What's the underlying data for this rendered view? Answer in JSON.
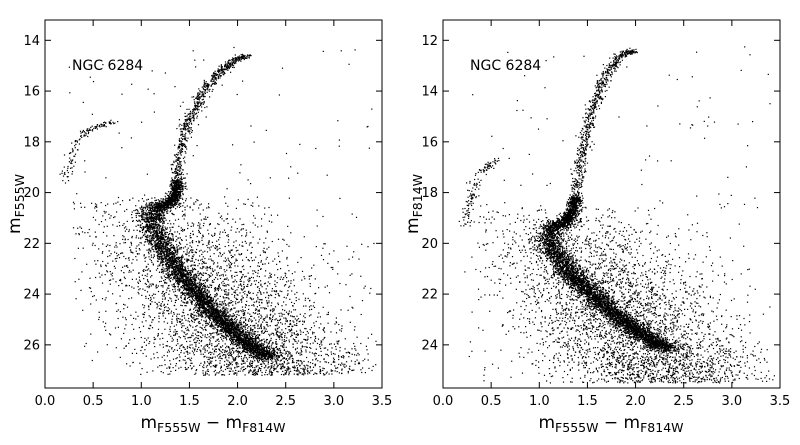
{
  "chart_data": [
    {
      "type": "scatter",
      "annotation": "NGC 6284",
      "xlabel_main": "m",
      "xlabel_sub1": "F555W",
      "xlabel_minus": " − m",
      "xlabel_sub2": "F814W",
      "ylabel_main": "m",
      "ylabel_sub": "F555W",
      "xlim": [
        0.0,
        3.5
      ],
      "ylim": [
        27.7,
        13.2
      ],
      "y_inverted": true,
      "xticks": [
        "0.0",
        "0.5",
        "1.0",
        "1.5",
        "2.0",
        "2.5",
        "3.0",
        "3.5"
      ],
      "yticks": [
        "14",
        "16",
        "18",
        "20",
        "22",
        "24",
        "26"
      ],
      "point_color": "#000000",
      "features": {
        "main_sequence": {
          "points": [
            [
              2.35,
              26.5
            ],
            [
              2.15,
              26.1
            ],
            [
              1.95,
              25.4
            ],
            [
              1.75,
              24.7
            ],
            [
              1.55,
              23.9
            ],
            [
              1.38,
              23.1
            ],
            [
              1.25,
              22.3
            ],
            [
              1.15,
              21.6
            ],
            [
              1.1,
              21.0
            ],
            [
              1.15,
              20.6
            ],
            [
              1.3,
              20.4
            ]
          ],
          "width": 0.07,
          "count": 4200
        },
        "subgiant_branch": {
          "points": [
            [
              1.3,
              20.4
            ],
            [
              1.36,
              20.1
            ],
            [
              1.38,
              19.5
            ]
          ],
          "width": 0.035,
          "count": 600
        },
        "red_giant_branch": {
          "points": [
            [
              1.38,
              19.5
            ],
            [
              1.4,
              18.5
            ],
            [
              1.45,
              17.6
            ],
            [
              1.55,
              16.8
            ],
            [
              1.65,
              16.0
            ],
            [
              1.8,
              15.3
            ],
            [
              1.97,
              14.8
            ],
            [
              2.1,
              14.6
            ]
          ],
          "width": 0.035,
          "count": 700
        },
        "horizontal_branch": {
          "points": [
            [
              0.22,
              19.6
            ],
            [
              0.26,
              18.8
            ],
            [
              0.32,
              18.1
            ],
            [
              0.42,
              17.6
            ],
            [
              0.55,
              17.4
            ],
            [
              0.72,
              17.2
            ]
          ],
          "width": 0.03,
          "count": 130
        },
        "field_stars": {
          "x": [
            0.3,
            3.45
          ],
          "y": [
            20.0,
            27.2
          ],
          "count": 3600
        }
      }
    },
    {
      "type": "scatter",
      "annotation": "NGC 6284",
      "xlabel_main": "m",
      "xlabel_sub1": "F555W",
      "xlabel_minus": " − m",
      "xlabel_sub2": "F814W",
      "ylabel_main": "m",
      "ylabel_sub": "F814W",
      "xlim": [
        0.0,
        3.5
      ],
      "ylim": [
        25.7,
        11.2
      ],
      "y_inverted": true,
      "xticks": [
        "0.0",
        "0.5",
        "1.0",
        "1.5",
        "2.0",
        "2.5",
        "3.0",
        "3.5"
      ],
      "yticks": [
        "12",
        "14",
        "16",
        "18",
        "20",
        "22",
        "24"
      ],
      "point_color": "#000000",
      "features": {
        "main_sequence": {
          "points": [
            [
              2.35,
              24.2
            ],
            [
              2.15,
              23.8
            ],
            [
              1.95,
              23.3
            ],
            [
              1.75,
              22.7
            ],
            [
              1.55,
              22.0
            ],
            [
              1.38,
              21.4
            ],
            [
              1.25,
              20.8
            ],
            [
              1.15,
              20.3
            ],
            [
              1.1,
              19.9
            ],
            [
              1.15,
              19.4
            ],
            [
              1.28,
              19.1
            ]
          ],
          "width": 0.07,
          "count": 4200
        },
        "subgiant_branch": {
          "points": [
            [
              1.28,
              19.1
            ],
            [
              1.34,
              18.8
            ],
            [
              1.38,
              18.2
            ]
          ],
          "width": 0.035,
          "count": 600
        },
        "red_giant_branch": {
          "points": [
            [
              1.38,
              18.2
            ],
            [
              1.42,
              17.0
            ],
            [
              1.47,
              16.0
            ],
            [
              1.53,
              15.0
            ],
            [
              1.62,
              14.0
            ],
            [
              1.72,
              13.2
            ],
            [
              1.85,
              12.6
            ],
            [
              1.98,
              12.4
            ]
          ],
          "width": 0.035,
          "count": 700
        },
        "horizontal_branch": {
          "points": [
            [
              0.22,
              19.5
            ],
            [
              0.26,
              18.6
            ],
            [
              0.32,
              17.8
            ],
            [
              0.4,
              17.2
            ],
            [
              0.5,
              16.9
            ],
            [
              0.6,
              16.6
            ]
          ],
          "width": 0.03,
          "count": 130
        },
        "field_stars": {
          "x": [
            0.3,
            3.45
          ],
          "y": [
            18.5,
            25.5
          ],
          "count": 3600
        }
      }
    }
  ]
}
